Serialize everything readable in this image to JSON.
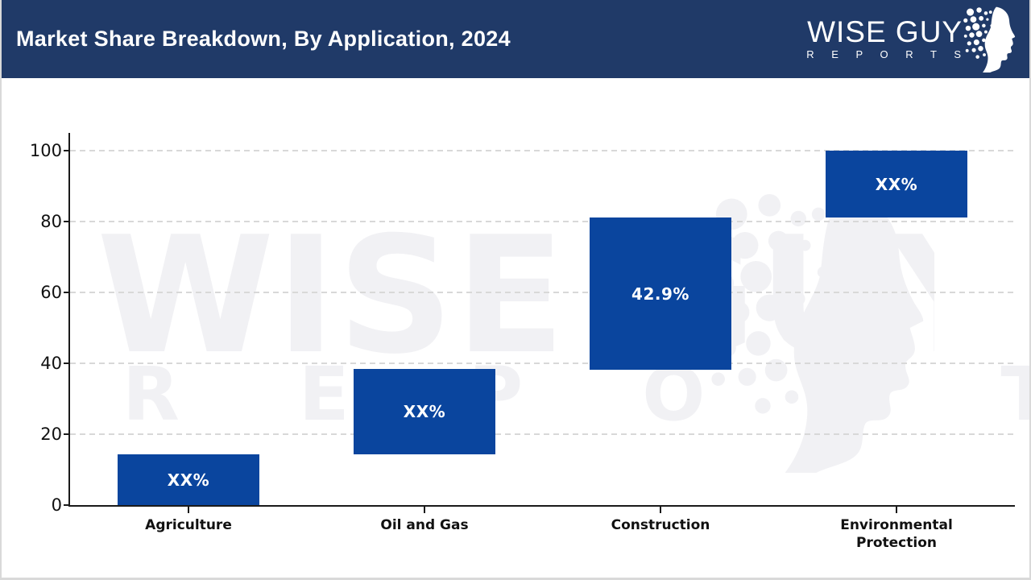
{
  "header": {
    "title": "Market Share Breakdown, By Application, 2024",
    "logo": {
      "brand": "WISE GUY",
      "sub": "R E P O R T S"
    }
  },
  "watermark": {
    "brand": "WISE GUY",
    "sub": "R E P O R T S"
  },
  "chart_data": {
    "type": "bar",
    "subtype": "floating-segment-waterfall",
    "title": "Market Share Breakdown, By Application, 2024",
    "categories": [
      "Agriculture",
      "Oil and Gas",
      "Construction",
      "Environmental Protection"
    ],
    "bars": [
      {
        "category": "Agriculture",
        "from": 0,
        "to": 14.3,
        "label": "XX%"
      },
      {
        "category": "Oil and Gas",
        "from": 14.3,
        "to": 38.3,
        "label": "XX%"
      },
      {
        "category": "Construction",
        "from": 38.3,
        "to": 81.2,
        "label": "42.9%"
      },
      {
        "category": "Environmental Protection",
        "from": 81.2,
        "to": 100,
        "label": "XX%"
      }
    ],
    "y_ticks": [
      0,
      20,
      40,
      60,
      80,
      100
    ],
    "ylim": [
      0,
      105
    ],
    "xlabel": "",
    "ylabel": "",
    "grid": "horizontal-dashed",
    "legend": null,
    "bar_color": "#0a459e"
  },
  "colors": {
    "header_bg": "#203a68",
    "bar": "#0a459e",
    "grid": "#d8d8d8",
    "axis": "#1a1a1a",
    "watermark": "#f1f1f4",
    "frame_border": "#d9d9d9",
    "title_text": "#ffffff"
  }
}
